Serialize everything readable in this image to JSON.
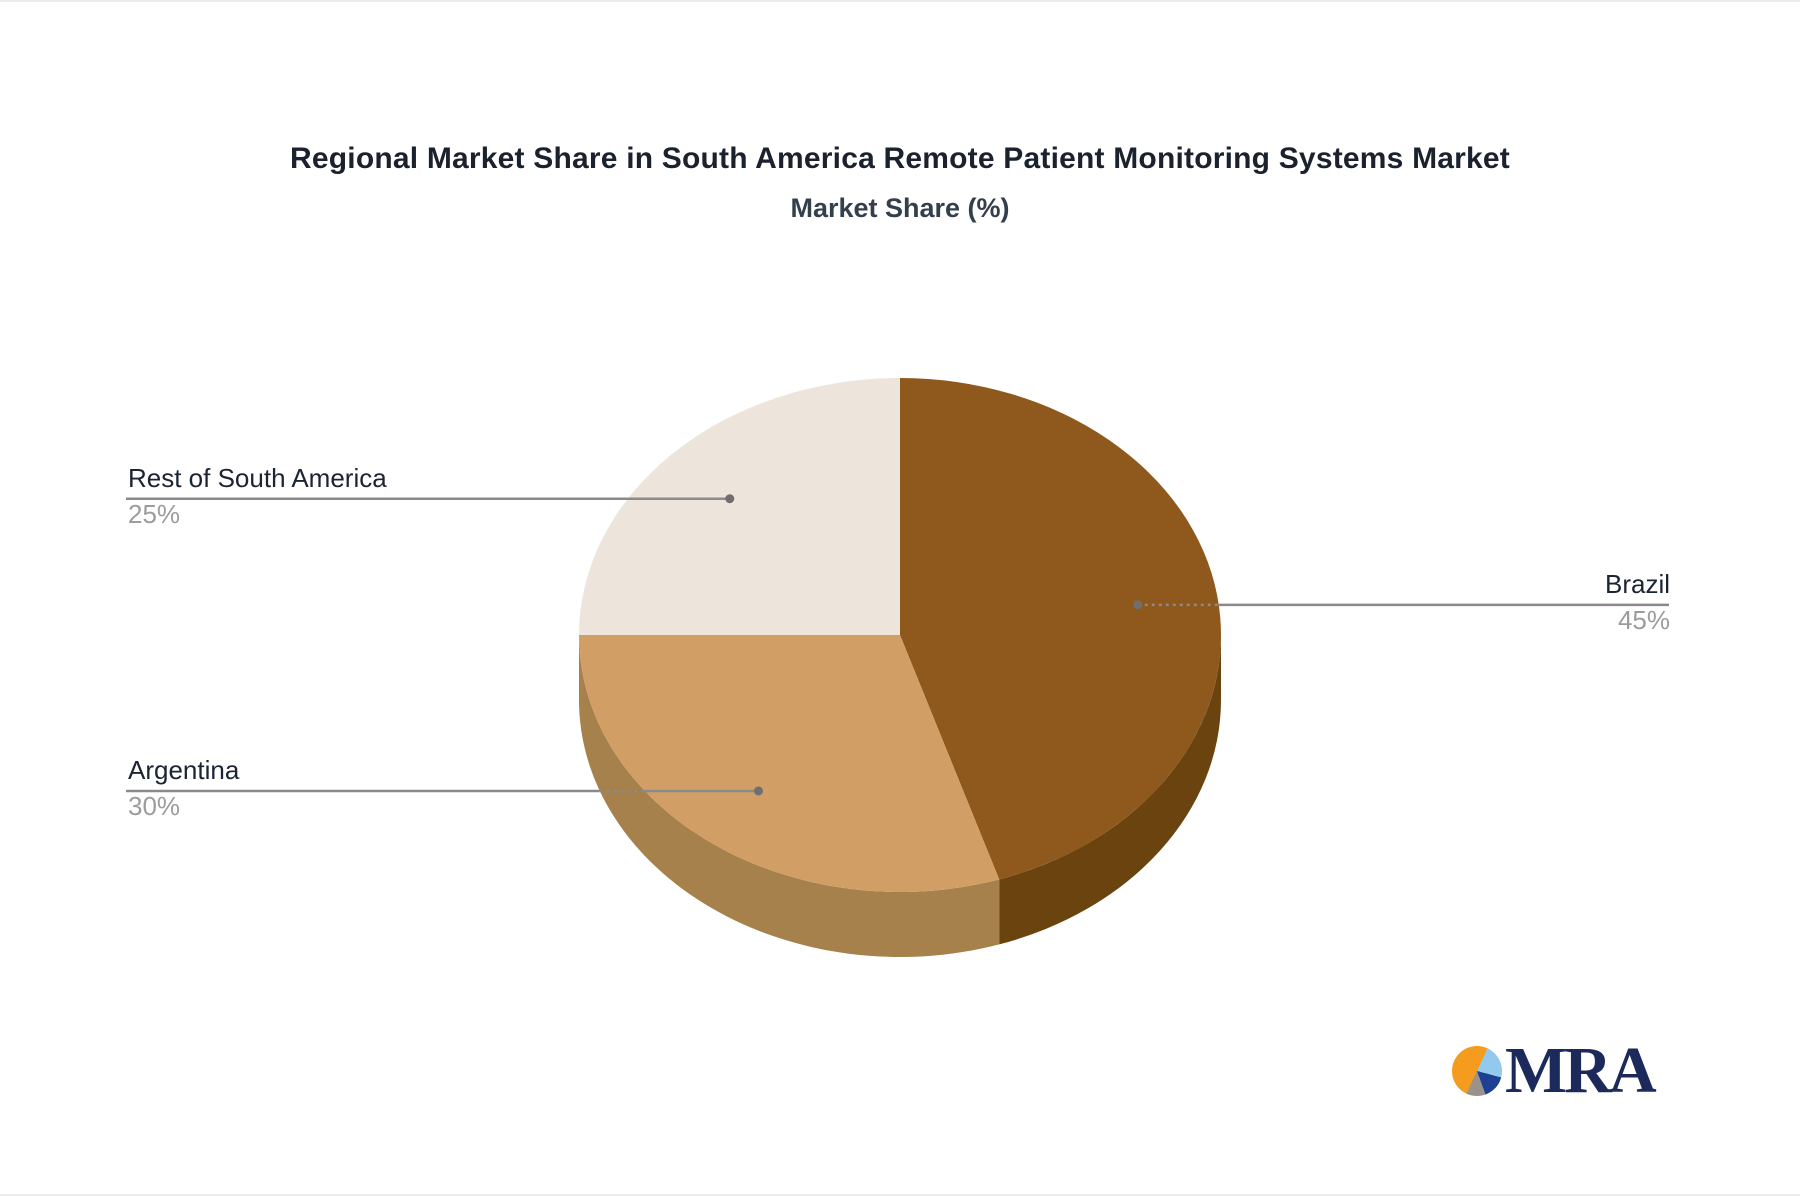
{
  "title": "Regional Market Share in South America Remote Patient Monitoring Systems Market",
  "subtitle": "Market Share (%)",
  "labels": {
    "brazil": {
      "name": "Brazil",
      "pct": "45%"
    },
    "argentina": {
      "name": "Argentina",
      "pct": "30%"
    },
    "rest": {
      "name": "Rest of South America",
      "pct": "25%"
    }
  },
  "logo": {
    "text": "MRA",
    "colors": {
      "orange": "#F59C1E",
      "light_blue": "#93C9EC",
      "dark_blue": "#1E4094",
      "gray": "#99938A",
      "text_navy": "#1B2A5B"
    }
  },
  "colors": {
    "leader_line": "#8A8A8A",
    "leader_dot": "#6F6F6F",
    "label_name": "#1A2433",
    "label_pct": "#9C9C9C",
    "title": "#1A222E",
    "subtitle": "#333F4D",
    "background": "#FFFFFF"
  },
  "chart_data": {
    "type": "pie",
    "style": "3d",
    "title": "Regional Market Share in South America Remote Patient Monitoring Systems Market",
    "subtitle": "Market Share (%)",
    "unit": "%",
    "start_angle": "top",
    "direction": "clockwise",
    "legend": "none",
    "categories": [
      "Brazil",
      "Argentina",
      "Rest of South America"
    ],
    "values": [
      45,
      30,
      25
    ],
    "slices": [
      {
        "key": "brazil",
        "label": "Brazil",
        "value": 45,
        "display": "45%",
        "color_top": "#8F581C",
        "color_side": "#6B430F",
        "label_side": "right"
      },
      {
        "key": "argentina",
        "label": "Argentina",
        "value": 30,
        "display": "30%",
        "color_top": "#D19F66",
        "color_side": "#A6814C",
        "label_side": "left"
      },
      {
        "key": "rest",
        "label": "Rest of South America",
        "value": 25,
        "display": "25%",
        "color_top": "#EDE4DB",
        "color_side": null,
        "label_side": "left"
      }
    ]
  }
}
